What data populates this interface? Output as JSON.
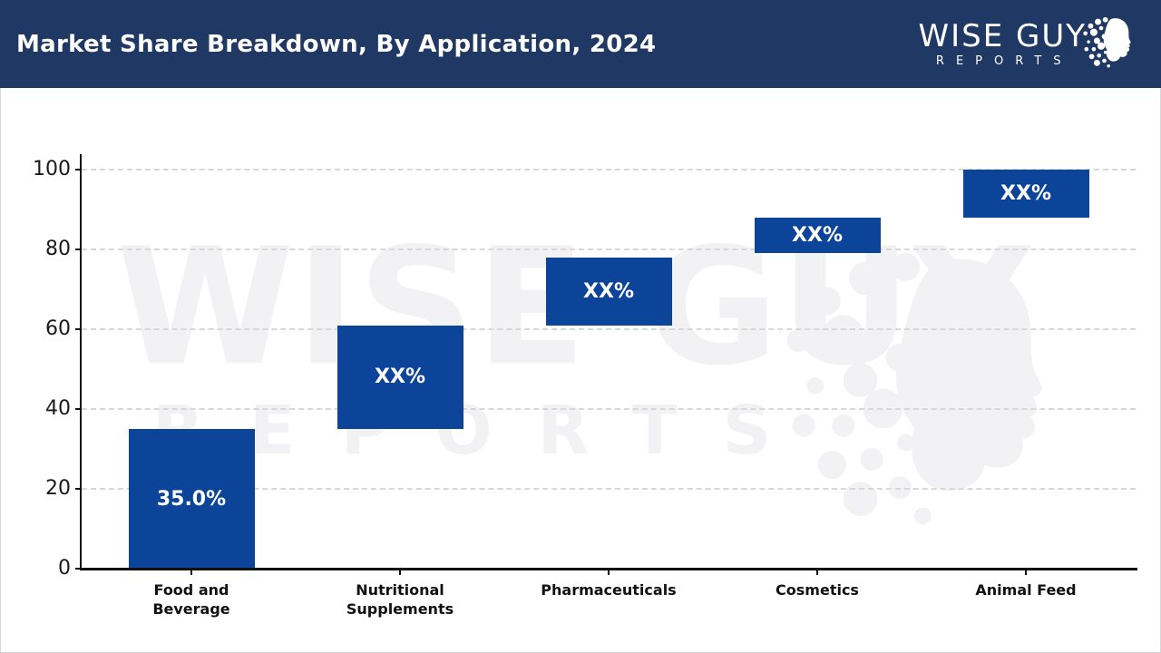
{
  "header": {
    "title": "Market Share Breakdown, By Application, 2024",
    "logo_line1": "WISE GUY",
    "logo_line2": "REPORTS"
  },
  "watermark": {
    "line1": "WISE GUY",
    "line2": "REPORTS"
  },
  "colors": {
    "header_bg": "#1f3864",
    "bar": "#0b4499",
    "grid": "#d8d8d8",
    "axis": "#111111",
    "watermark": "#f2f2f4",
    "bar_label": "#ffffff"
  },
  "chart_data": {
    "type": "bar",
    "variant": "floating-waterfall",
    "title": "Market Share Breakdown, By Application, 2024",
    "categories": [
      "Food and Beverage",
      "Nutritional Supplements",
      "Pharmaceuticals",
      "Cosmetics",
      "Animal Feed"
    ],
    "bars": [
      {
        "category": "Food and Beverage",
        "label": "35.0%",
        "start": 0,
        "end": 35
      },
      {
        "category": "Nutritional Supplements",
        "label": "XX%",
        "start": 35,
        "end": 61
      },
      {
        "category": "Pharmaceuticals",
        "label": "XX%",
        "start": 61,
        "end": 78
      },
      {
        "category": "Cosmetics",
        "label": "XX%",
        "start": 79,
        "end": 88
      },
      {
        "category": "Animal Feed",
        "label": "XX%",
        "start": 88,
        "end": 100
      }
    ],
    "y_ticks": [
      0,
      20,
      40,
      60,
      80,
      100
    ],
    "ylim": [
      0,
      100
    ],
    "xlabel": "",
    "ylabel": "",
    "grid": "horizontal-dashed",
    "legend": "none",
    "bar_color": "#0b4499"
  }
}
